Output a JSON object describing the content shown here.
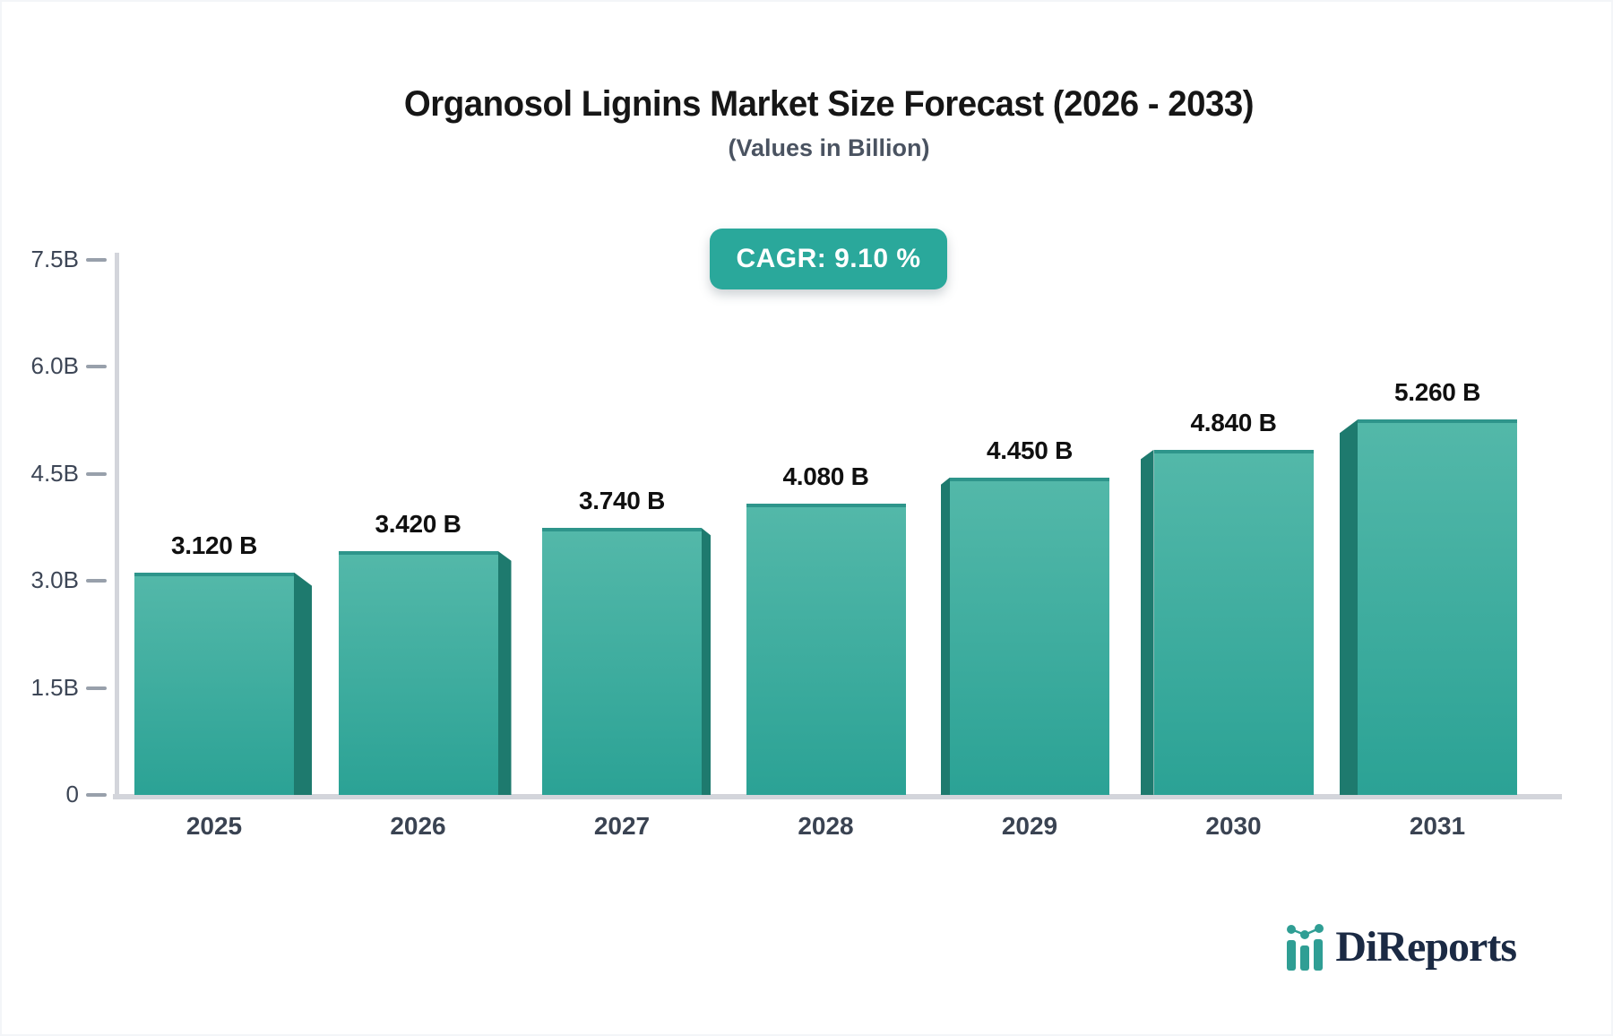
{
  "header": {
    "title": "Organosol Lignins Market Size Forecast (2026 - 2033)",
    "subtitle": "(Values in Billion)"
  },
  "badge": {
    "label": "CAGR: 9.10 %",
    "bg_color": "#2aa89b",
    "text_color": "#ffffff"
  },
  "chart_data": {
    "type": "bar",
    "title": "Organosol Lignins Market Size Forecast (2026 - 2033)",
    "subtitle": "(Values in Billion)",
    "categories": [
      "2025",
      "2026",
      "2027",
      "2028",
      "2029",
      "2030",
      "2031"
    ],
    "values": [
      3.12,
      3.42,
      3.74,
      4.08,
      4.45,
      4.84,
      5.26
    ],
    "value_labels": [
      "3.120 B",
      "3.420 B",
      "3.740 B",
      "4.080 B",
      "4.450 B",
      "4.840 B",
      "5.260 B"
    ],
    "xlabel": "",
    "ylabel": "",
    "ylim": [
      0,
      7.5
    ],
    "y_tick_values": [
      7.5,
      6.0,
      4.5,
      3.0,
      1.5,
      0
    ],
    "y_tick_labels": [
      "7.5B",
      "6.0B",
      "4.5B",
      "3.0B",
      "1.5B",
      "0"
    ],
    "grid": false,
    "legend": false,
    "cagr": "9.10 %",
    "colors": {
      "bar_face_top": "#53b8a9",
      "bar_face_bottom": "#2ba295",
      "bar_top_edge": "#2e958b",
      "bar_side": "#1e7a6e",
      "axis_line": "#d3d5db",
      "tick_dash": "#98a0ab",
      "tick_label": "#3d4656",
      "x_label": "#3a4352",
      "value_label": "#101010"
    }
  },
  "logo": {
    "text": "DiReports",
    "icon": "mini-bar-chart-icon",
    "text_color": "#1b2a44",
    "icon_color": "#2f9e94"
  }
}
